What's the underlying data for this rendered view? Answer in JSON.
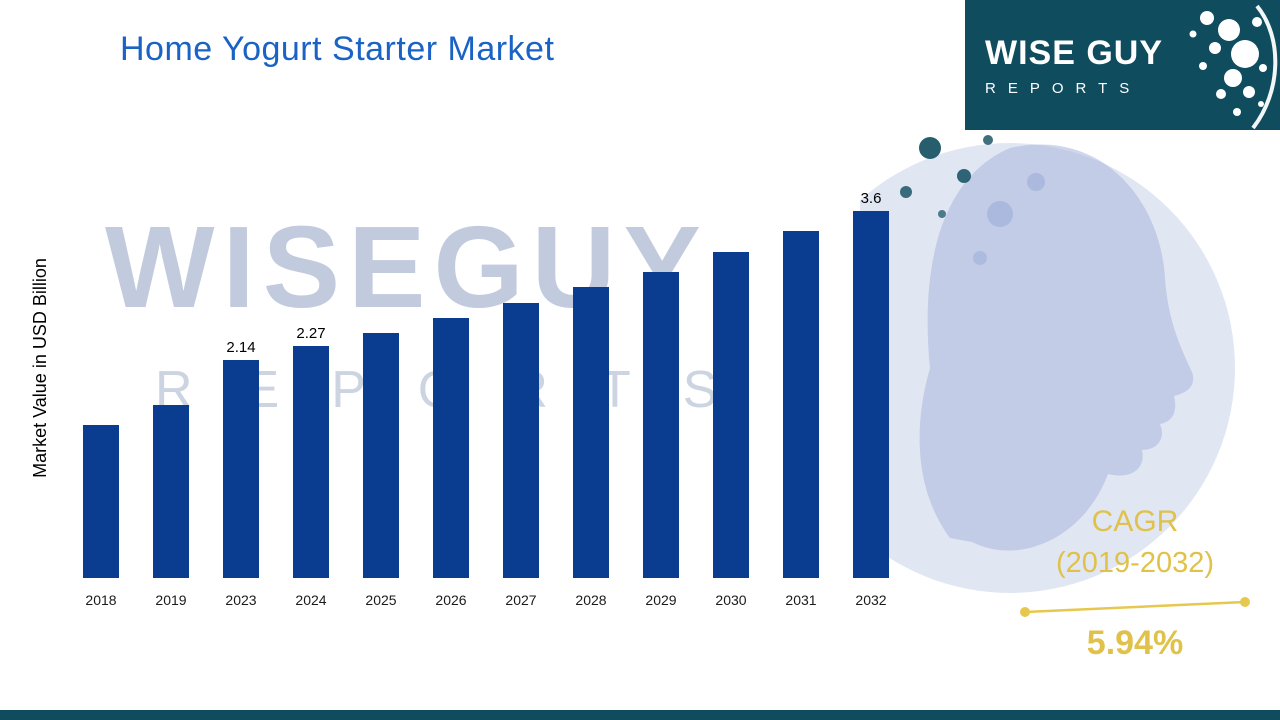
{
  "page": {
    "title": "Home Yogurt Starter Market"
  },
  "logo": {
    "line1": "WISE GUY",
    "line2": "REPORTS"
  },
  "watermark": {
    "line1": "WISEGUY",
    "line2": "REPORTS"
  },
  "cagr": {
    "label": "CAGR",
    "range": "(2019-2032)",
    "value": "5.94%"
  },
  "colors": {
    "bar": "#0a3d8f",
    "teal": "#0e4c5e",
    "gold": "#e0c24a",
    "title_blue": "#1a63c5"
  },
  "chart_data": {
    "type": "bar",
    "title": "Home Yogurt Starter Market",
    "xlabel": "",
    "ylabel": "Market Value in USD Billion",
    "unit": "USD Billion",
    "categories": [
      "2018",
      "2019",
      "2023",
      "2024",
      "2025",
      "2026",
      "2027",
      "2028",
      "2029",
      "2030",
      "2031",
      "2032"
    ],
    "values": [
      1.5,
      1.7,
      2.14,
      2.27,
      2.4,
      2.55,
      2.7,
      2.85,
      3.0,
      3.2,
      3.4,
      3.6
    ],
    "data_labels": {
      "2023": "2.14",
      "2024": "2.27",
      "2032": "3.6"
    },
    "ylim": [
      0,
      4
    ],
    "grid": false,
    "legend": false,
    "bar_color": "#0a3d8f"
  }
}
